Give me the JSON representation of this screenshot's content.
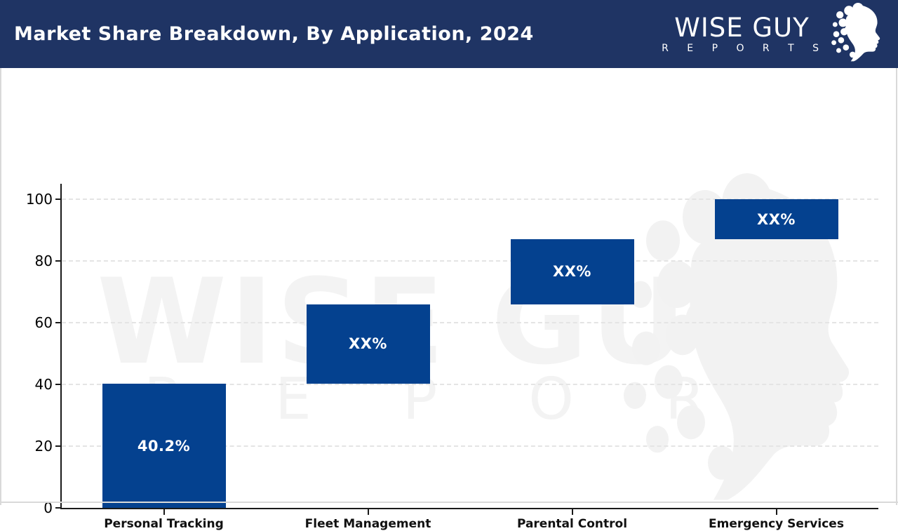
{
  "header": {
    "title": "Market Share Breakdown, By Application, 2024",
    "logo": {
      "line1": "WISE GUY",
      "line2": "R E P O R T S"
    }
  },
  "watermark": {
    "line1": "WISE GUY",
    "line2": "R E P O R T S"
  },
  "chart_data": {
    "type": "bar",
    "variant": "floating-waterfall",
    "title": "Market Share Breakdown, By Application, 2024",
    "categories": [
      "Personal Tracking",
      "Fleet Management",
      "Parental Control",
      "Emergency Services"
    ],
    "bars": [
      {
        "category": "Personal Tracking",
        "start": 0,
        "end": 40.2,
        "label": "40.2%"
      },
      {
        "category": "Fleet Management",
        "start": 40.2,
        "end": 66,
        "label": "XX%"
      },
      {
        "category": "Parental Control",
        "start": 66,
        "end": 87,
        "label": "XX%"
      },
      {
        "category": "Emergency Services",
        "start": 87,
        "end": 100,
        "label": "XX%"
      }
    ],
    "ylabel": "",
    "xlabel": "",
    "ylim": [
      0,
      100
    ],
    "yticks": [
      0,
      20,
      40,
      60,
      80,
      100
    ],
    "grid": "horizontal-dashed",
    "legend": "none",
    "bar_color": "#04418f",
    "bar_label_color": "#ffffff"
  },
  "colors": {
    "header_bg": "#1f3464",
    "bar": "#04418f",
    "axis": "#1a1a1a",
    "gridline": "#e4e4e4",
    "watermark": "#f2f2f2",
    "page_bg": "#ffffff"
  }
}
